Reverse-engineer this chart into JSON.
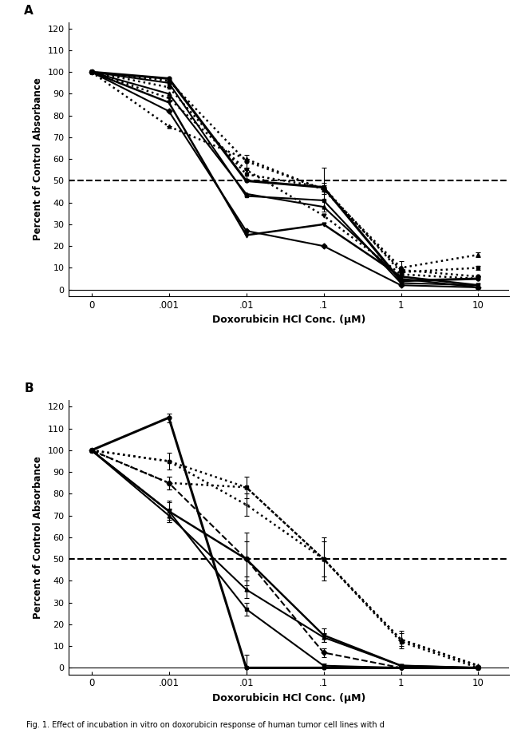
{
  "x_labels": [
    "0",
    ".001",
    ".01",
    ".1",
    "1",
    "10"
  ],
  "xlabel": "Doxorubicin HCl Conc. (μM)",
  "ylabel": "Percent of Control Absorbance",
  "panel_A_label": "A",
  "panel_B_label": "B",
  "yticks": [
    0,
    10,
    20,
    30,
    40,
    50,
    60,
    70,
    80,
    90,
    100,
    110,
    120
  ],
  "background_color": "#ffffff",
  "panel_A": {
    "series": [
      {
        "y": [
          100,
          97,
          50,
          47,
          4,
          5
        ],
        "yerr": [
          0,
          0,
          0,
          0,
          0,
          0
        ],
        "style": "-",
        "marker": "o",
        "markersize": 3.5,
        "linewidth": 2.2,
        "color": "#000000",
        "markerfacecolor": "#000000"
      },
      {
        "y": [
          100,
          95,
          43,
          41,
          3,
          2
        ],
        "yerr": [
          0,
          0,
          0,
          0,
          0,
          0
        ],
        "style": "-",
        "marker": "s",
        "markersize": 3.5,
        "linewidth": 1.5,
        "color": "#000000",
        "markerfacecolor": "#000000"
      },
      {
        "y": [
          100,
          90,
          44,
          38,
          5,
          1
        ],
        "yerr": [
          0,
          0,
          0,
          0,
          0,
          0
        ],
        "style": "-",
        "marker": "^",
        "markersize": 3.5,
        "linewidth": 1.5,
        "color": "#000000",
        "markerfacecolor": "#000000"
      },
      {
        "y": [
          100,
          86,
          25,
          30,
          6,
          2
        ],
        "yerr": [
          0,
          0,
          0,
          0,
          0,
          0
        ],
        "style": "-",
        "marker": "v",
        "markersize": 3.5,
        "linewidth": 1.8,
        "color": "#000000",
        "markerfacecolor": "#000000"
      },
      {
        "y": [
          100,
          82,
          27,
          20,
          2,
          1
        ],
        "yerr": [
          0,
          0,
          0,
          0,
          0,
          0
        ],
        "style": "-",
        "marker": "D",
        "markersize": 3.5,
        "linewidth": 1.5,
        "color": "#000000",
        "markerfacecolor": "#000000"
      },
      {
        "y": [
          100,
          96,
          59,
          46,
          9,
          6
        ],
        "yerr": [
          0,
          0,
          3,
          2,
          1,
          0
        ],
        "style": ":",
        "marker": "o",
        "markersize": 3.5,
        "linewidth": 1.8,
        "color": "#000000",
        "markerfacecolor": "#000000"
      },
      {
        "y": [
          100,
          93,
          53,
          47,
          8,
          10
        ],
        "yerr": [
          0,
          0,
          2,
          2,
          2,
          1
        ],
        "style": ":",
        "marker": "s",
        "markersize": 3.5,
        "linewidth": 1.8,
        "color": "#000000",
        "markerfacecolor": "#000000"
      },
      {
        "y": [
          100,
          75,
          60,
          46,
          10,
          16
        ],
        "yerr": [
          0,
          0,
          0,
          10,
          3,
          1
        ],
        "style": ":",
        "marker": "^",
        "markersize": 3.5,
        "linewidth": 1.8,
        "color": "#000000",
        "markerfacecolor": "#000000"
      },
      {
        "y": [
          100,
          88,
          55,
          34,
          7,
          5
        ],
        "yerr": [
          0,
          0,
          0,
          0,
          0,
          0
        ],
        "style": ":",
        "marker": "v",
        "markersize": 3.5,
        "linewidth": 1.8,
        "color": "#000000",
        "markerfacecolor": "#000000"
      }
    ]
  },
  "panel_B": {
    "series": [
      {
        "y": [
          100,
          115,
          0,
          0,
          0,
          0
        ],
        "yerr": [
          0,
          2,
          6,
          0,
          0,
          0
        ],
        "style": "-",
        "marker": "o",
        "markersize": 3.5,
        "linewidth": 2.2,
        "color": "#000000",
        "markerfacecolor": "#000000"
      },
      {
        "y": [
          100,
          72,
          27,
          1,
          0,
          0
        ],
        "yerr": [
          0,
          4,
          3,
          1,
          0,
          0
        ],
        "style": "-",
        "marker": "s",
        "markersize": 3.5,
        "linewidth": 1.5,
        "color": "#000000",
        "markerfacecolor": "#000000"
      },
      {
        "y": [
          100,
          70,
          36,
          14,
          1,
          0
        ],
        "yerr": [
          0,
          3,
          4,
          2,
          0,
          0
        ],
        "style": "-",
        "marker": "^",
        "markersize": 3.5,
        "linewidth": 1.5,
        "color": "#000000",
        "markerfacecolor": "#000000"
      },
      {
        "y": [
          100,
          72,
          50,
          15,
          1,
          0
        ],
        "yerr": [
          0,
          5,
          8,
          3,
          0,
          0
        ],
        "style": "-",
        "marker": "v",
        "markersize": 3.5,
        "linewidth": 1.8,
        "color": "#000000",
        "markerfacecolor": "#000000"
      },
      {
        "y": [
          100,
          85,
          50,
          7,
          0,
          0
        ],
        "yerr": [
          0,
          3,
          12,
          2,
          0,
          0
        ],
        "style": "--",
        "marker": "D",
        "markersize": 3.5,
        "linewidth": 1.5,
        "color": "#000000",
        "markerfacecolor": "#000000"
      },
      {
        "y": [
          100,
          85,
          83,
          50,
          13,
          1
        ],
        "yerr": [
          0,
          3,
          5,
          10,
          3,
          0
        ],
        "style": ":",
        "marker": "^",
        "markersize": 3.5,
        "linewidth": 1.8,
        "color": "#000000",
        "markerfacecolor": "#000000"
      },
      {
        "y": [
          100,
          95,
          75,
          50,
          13,
          1
        ],
        "yerr": [
          0,
          4,
          5,
          8,
          4,
          0
        ],
        "style": ":",
        "marker": "+",
        "markersize": 5,
        "linewidth": 1.8,
        "color": "#000000",
        "markerfacecolor": "#000000"
      },
      {
        "y": [
          100,
          95,
          83,
          50,
          12,
          0
        ],
        "yerr": [
          0,
          0,
          0,
          0,
          0,
          0
        ],
        "style": ":",
        "marker": "s",
        "markersize": 3.5,
        "linewidth": 1.8,
        "color": "#000000",
        "markerfacecolor": "#000000"
      }
    ]
  },
  "caption": "Fig. 1. Effect of incubation in vitro on doxorubicin response of human tumor cell lines with d"
}
